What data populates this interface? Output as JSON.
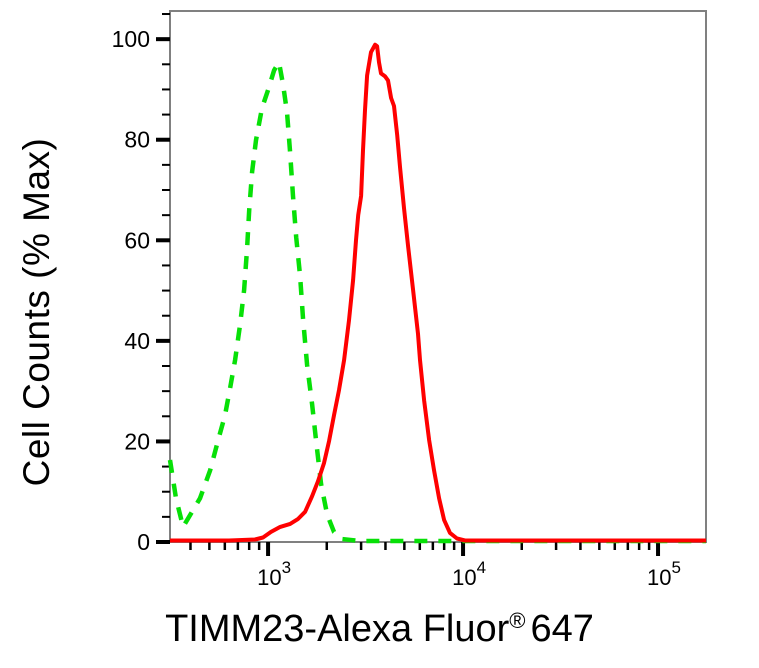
{
  "figure": {
    "background": "#ffffff",
    "frame_color": "#808080",
    "tick_color": "#000000",
    "text_color": "#000000"
  },
  "chart_data": {
    "type": "line",
    "subtype": "flow-cytometry-histogram",
    "title": "",
    "xlabel": "TIMM23-Alexa Fluor® 647",
    "xlabel_parts": [
      "TIMM23-Alexa Fluor",
      "®",
      "647"
    ],
    "ylabel": "Cell Counts (% Max)",
    "x_scale": "log10",
    "xlim_log10": [
      2.497,
      5.246
    ],
    "ylim": [
      0,
      105.6
    ],
    "grid": false,
    "legend": false,
    "y_major_ticks": [
      {
        "value": 0,
        "label": "0"
      },
      {
        "value": 20,
        "label": "20"
      },
      {
        "value": 40,
        "label": "40"
      },
      {
        "value": 60,
        "label": "60"
      },
      {
        "value": 80,
        "label": "80"
      },
      {
        "value": 100,
        "label": "100"
      }
    ],
    "y_minor_tick_step": 5,
    "x_major_ticks": [
      {
        "log10": 3,
        "base": "10",
        "exponent": "3"
      },
      {
        "log10": 4,
        "base": "10",
        "exponent": "4"
      },
      {
        "log10": 5,
        "base": "10",
        "exponent": "5"
      }
    ],
    "x_minor_tick_mantissas": [
      2,
      3,
      4,
      5,
      6,
      7,
      8,
      9
    ],
    "series": [
      {
        "name": "green-dashed-curve",
        "color": "#07e007",
        "line_style": "dashed",
        "line_width": 4.5,
        "peak_log10x": 3.056,
        "peak_pct": 95.4,
        "points": [
          [
            2.497,
            16.3
          ],
          [
            2.528,
            8.7
          ],
          [
            2.564,
            3.0
          ],
          [
            2.61,
            6.0
          ],
          [
            2.651,
            8.7
          ],
          [
            2.703,
            14.3
          ],
          [
            2.744,
            20.3
          ],
          [
            2.779,
            25.2
          ],
          [
            2.805,
            30.6
          ],
          [
            2.831,
            36.2
          ],
          [
            2.856,
            43.1
          ],
          [
            2.877,
            50.1
          ],
          [
            2.892,
            58.1
          ],
          [
            2.903,
            66.0
          ],
          [
            2.918,
            73.6
          ],
          [
            2.938,
            79.9
          ],
          [
            2.969,
            86.3
          ],
          [
            3.0,
            89.9
          ],
          [
            3.031,
            93.8
          ],
          [
            3.056,
            95.4
          ],
          [
            3.077,
            90.9
          ],
          [
            3.097,
            85.5
          ],
          [
            3.113,
            77.5
          ],
          [
            3.128,
            68.8
          ],
          [
            3.144,
            60.6
          ],
          [
            3.164,
            52.9
          ],
          [
            3.179,
            44.5
          ],
          [
            3.2,
            35.2
          ],
          [
            3.226,
            27.4
          ],
          [
            3.246,
            20.3
          ],
          [
            3.272,
            11.5
          ],
          [
            3.303,
            5.4
          ],
          [
            3.338,
            2.0
          ],
          [
            3.379,
            0.6
          ],
          [
            3.472,
            0.2
          ],
          [
            4.0,
            0.2
          ],
          [
            4.6,
            0.2
          ],
          [
            5.246,
            0.2
          ]
        ]
      },
      {
        "name": "red-solid-curve",
        "color": "#ff0000",
        "line_style": "solid",
        "line_width": 4,
        "peak_log10x": 3.549,
        "peak_pct": 98.9,
        "points": [
          [
            2.497,
            0.3
          ],
          [
            2.8,
            0.3
          ],
          [
            2.933,
            0.5
          ],
          [
            2.974,
            0.9
          ],
          [
            3.015,
            2.0
          ],
          [
            3.062,
            3.0
          ],
          [
            3.113,
            3.6
          ],
          [
            3.154,
            4.6
          ],
          [
            3.19,
            6.0
          ],
          [
            3.226,
            9.1
          ],
          [
            3.256,
            12.1
          ],
          [
            3.287,
            15.7
          ],
          [
            3.313,
            20.1
          ],
          [
            3.338,
            25.2
          ],
          [
            3.364,
            30.2
          ],
          [
            3.39,
            36.2
          ],
          [
            3.415,
            44.1
          ],
          [
            3.436,
            52.1
          ],
          [
            3.451,
            60.0
          ],
          [
            3.462,
            65.0
          ],
          [
            3.477,
            68.8
          ],
          [
            3.487,
            77.9
          ],
          [
            3.497,
            85.9
          ],
          [
            3.508,
            92.8
          ],
          [
            3.528,
            97.4
          ],
          [
            3.549,
            98.9
          ],
          [
            3.559,
            98.6
          ],
          [
            3.569,
            95.4
          ],
          [
            3.579,
            93.2
          ],
          [
            3.6,
            92.6
          ],
          [
            3.615,
            91.8
          ],
          [
            3.631,
            88.3
          ],
          [
            3.646,
            86.7
          ],
          [
            3.662,
            80.9
          ],
          [
            3.677,
            74.4
          ],
          [
            3.697,
            66.4
          ],
          [
            3.718,
            58.8
          ],
          [
            3.744,
            50.1
          ],
          [
            3.769,
            41.4
          ],
          [
            3.779,
            36.2
          ],
          [
            3.8,
            28.2
          ],
          [
            3.826,
            20.3
          ],
          [
            3.851,
            14.3
          ],
          [
            3.877,
            8.7
          ],
          [
            3.903,
            4.4
          ],
          [
            3.933,
            1.8
          ],
          [
            3.969,
            0.7
          ],
          [
            4.01,
            0.3
          ],
          [
            4.6,
            0.3
          ],
          [
            5.246,
            0.3
          ]
        ]
      }
    ]
  }
}
